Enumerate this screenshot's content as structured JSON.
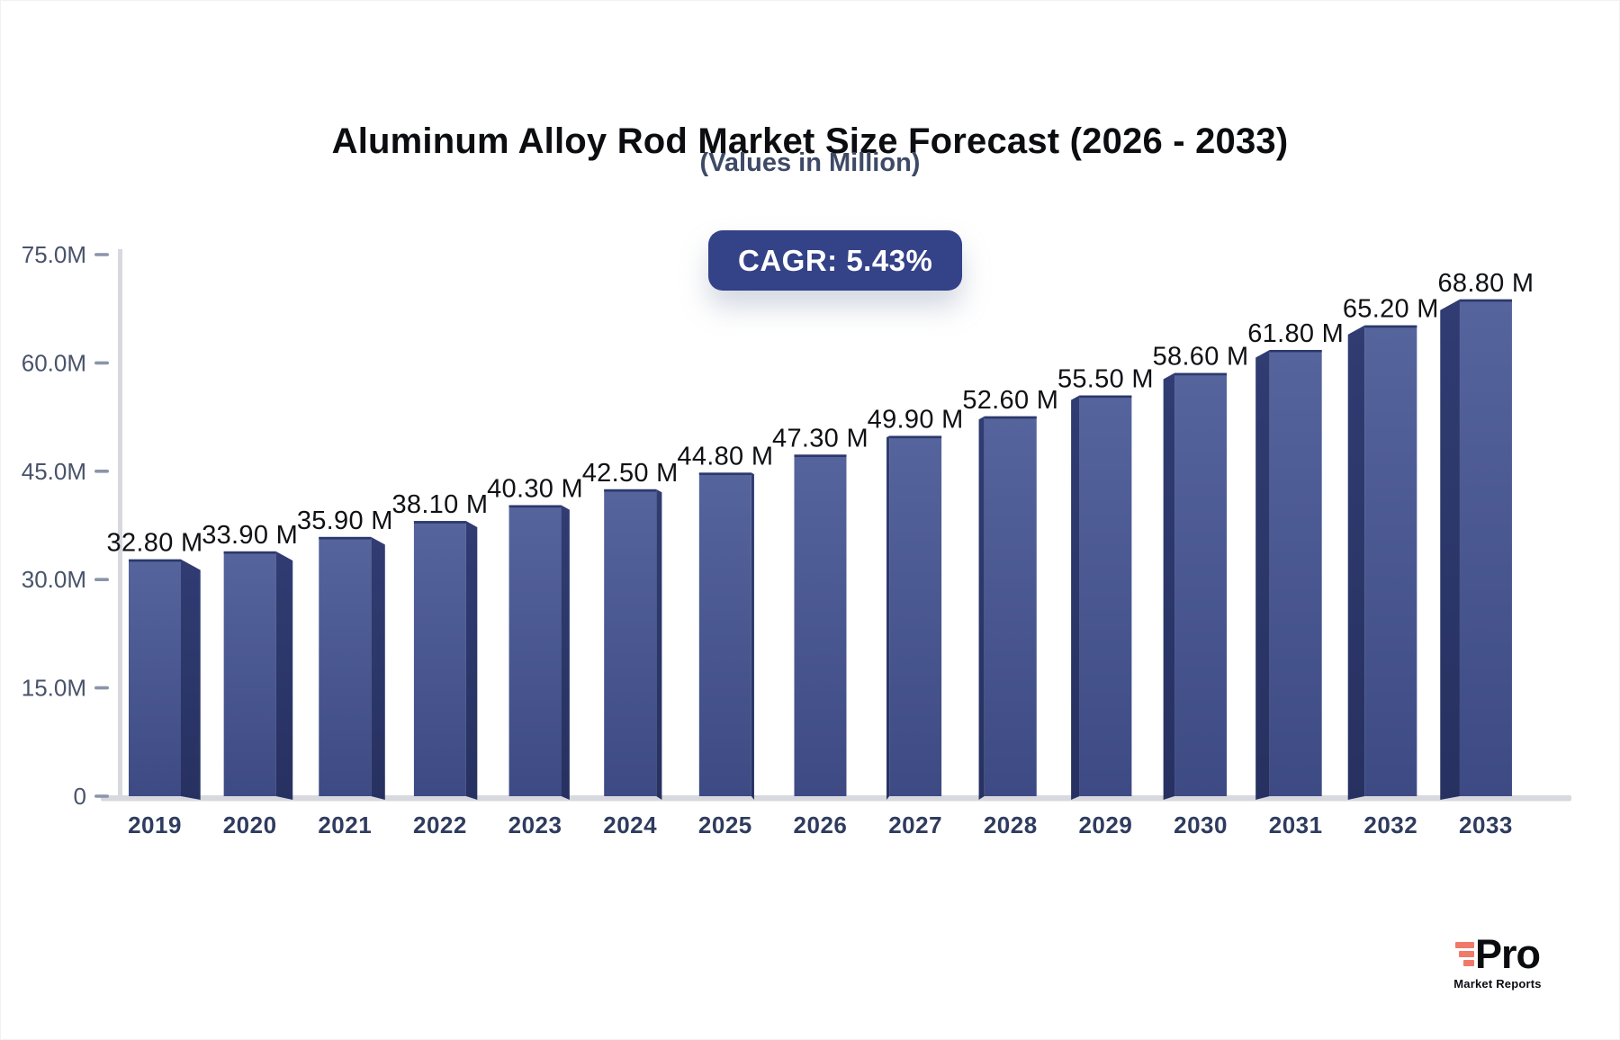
{
  "header": {
    "title": "Aluminum Alloy Rod Market Size Forecast (2026 - 2033)",
    "subtitle": "(Values in Million)"
  },
  "badge": {
    "label": "CAGR: 5.43%",
    "bg": "#344288",
    "text_color": "#ffffff"
  },
  "chart_data": {
    "type": "bar",
    "title": "Aluminum Alloy Rod Market Size Forecast (2026 - 2033)",
    "subtitle": "(Values in Million)",
    "unit": "Million",
    "cagr_label": "CAGR: 5.43%",
    "categories": [
      "2019",
      "2020",
      "2021",
      "2022",
      "2023",
      "2024",
      "2025",
      "2026",
      "2027",
      "2028",
      "2029",
      "2030",
      "2031",
      "2032",
      "2033"
    ],
    "values": [
      32.8,
      33.9,
      35.9,
      38.1,
      40.3,
      42.5,
      44.8,
      47.3,
      49.9,
      52.6,
      55.5,
      58.6,
      61.8,
      65.2,
      68.8
    ],
    "value_labels": [
      "32.80 M",
      "33.90 M",
      "35.90 M",
      "38.10 M",
      "40.30 M",
      "42.50 M",
      "44.80 M",
      "47.30 M",
      "49.90 M",
      "52.60 M",
      "55.50 M",
      "58.60 M",
      "61.80 M",
      "65.20 M",
      "68.80 M"
    ],
    "xlabel": "",
    "ylabel": "",
    "ylim": [
      0,
      75
    ],
    "grid": false,
    "legend": "none",
    "y_ticks": [
      {
        "value": 75,
        "label": "75.0M"
      },
      {
        "value": 60,
        "label": "60.0M"
      },
      {
        "value": 45,
        "label": "45.0M"
      },
      {
        "value": 30,
        "label": "30.0M"
      },
      {
        "value": 15,
        "label": "15.0M"
      },
      {
        "value": 0,
        "label": "0"
      }
    ],
    "colors": {
      "bar_front_top": "#56649d",
      "bar_front_bottom": "#3d4a84",
      "bar_side_top": "#303c72",
      "bar_side_bottom": "#273161",
      "bar_top_edge": "#2c386b",
      "axis_line": "#d8d9de",
      "tick": "#8b94a8",
      "axis_label": "#49536a",
      "year_label": "#2f3c5f",
      "value_label": "#101114"
    }
  },
  "logo": {
    "text": "Pro",
    "tagline": "Market Reports",
    "accent": "#f0796a"
  }
}
